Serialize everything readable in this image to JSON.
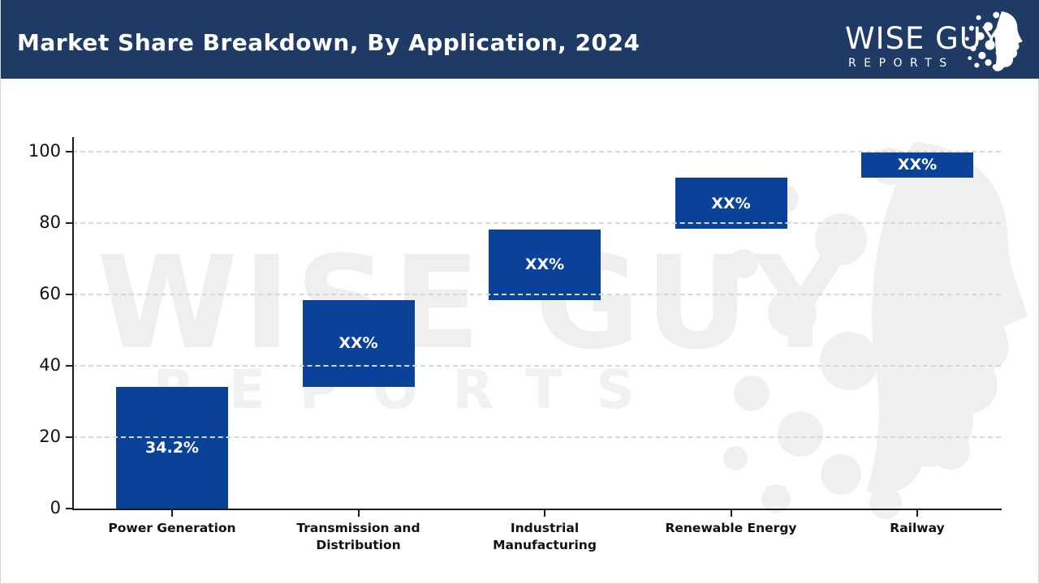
{
  "header": {
    "title": "Market Share Breakdown, By Application, 2024",
    "bg_color": "#1f3a64",
    "logo": {
      "line1": "WISE GUY",
      "line2": "REPORTS"
    }
  },
  "watermark": {
    "line1": "WISE GUY",
    "line2": "REPORTS"
  },
  "chart_data": {
    "type": "bar",
    "subtype": "waterfall",
    "title": "Market Share Breakdown, By Application, 2024",
    "categories": [
      "Power Generation",
      "Transmission and Distribution",
      "Industrial Manufacturing",
      "Renewable Energy",
      "Railway"
    ],
    "series": [
      {
        "name": "Market Share",
        "segments": [
          {
            "category": "Power Generation",
            "start": 0,
            "end": 34.2,
            "label": "34.2%"
          },
          {
            "category": "Transmission and Distribution",
            "start": 34.2,
            "end": 58.5,
            "label": "XX%"
          },
          {
            "category": "Industrial Manufacturing",
            "start": 58.5,
            "end": 78.2,
            "label": "XX%"
          },
          {
            "category": "Renewable Energy",
            "start": 78.3,
            "end": 92.7,
            "label": "XX%"
          },
          {
            "category": "Railway",
            "start": 92.8,
            "end": 99.8,
            "label": "XX%"
          }
        ]
      }
    ],
    "bar_color": "#0a4299",
    "bar_label_color": "#ffffff",
    "xlabel": "",
    "ylabel": "",
    "yticks": [
      0,
      20,
      40,
      60,
      80,
      100
    ],
    "ylim": [
      0,
      104
    ],
    "grid": "horizontal-dashed",
    "grid_on_top_of_bars": true,
    "legend": "none"
  }
}
